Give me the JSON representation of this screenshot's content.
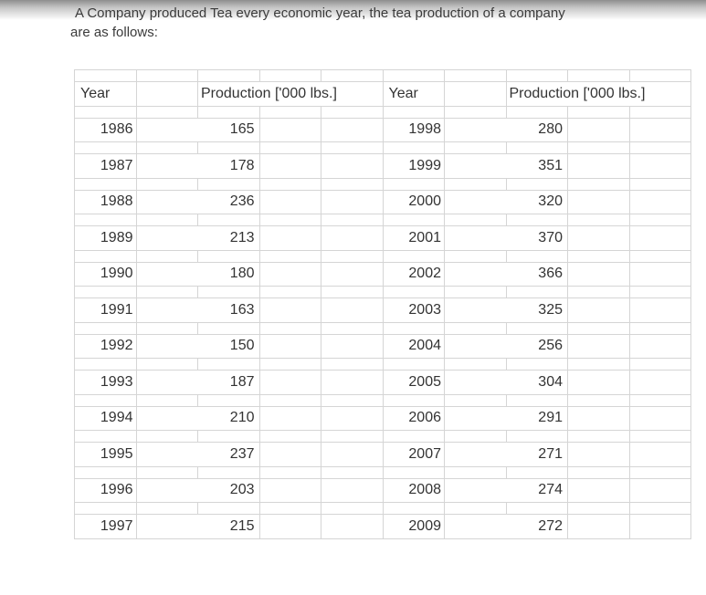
{
  "heading": {
    "line1": "A Company produced Tea every economic year, the tea production of a company",
    "line2": "are as follows:"
  },
  "table": {
    "headers": {
      "year": "Year",
      "production": "Production ['000 lbs.]"
    },
    "rows": [
      {
        "year_left": "1986",
        "prod_left": "165",
        "year_right": "1998",
        "prod_right": "280"
      },
      {
        "year_left": "1987",
        "prod_left": "178",
        "year_right": "1999",
        "prod_right": "351"
      },
      {
        "year_left": "1988",
        "prod_left": "236",
        "year_right": "2000",
        "prod_right": "320"
      },
      {
        "year_left": "1989",
        "prod_left": "213",
        "year_right": "2001",
        "prod_right": "370"
      },
      {
        "year_left": "1990",
        "prod_left": "180",
        "year_right": "2002",
        "prod_right": "366"
      },
      {
        "year_left": "1991",
        "prod_left": "163",
        "year_right": "2003",
        "prod_right": "325"
      },
      {
        "year_left": "1992",
        "prod_left": "150",
        "year_right": "2004",
        "prod_right": "256"
      },
      {
        "year_left": "1993",
        "prod_left": "187",
        "year_right": "2005",
        "prod_right": "304"
      },
      {
        "year_left": "1994",
        "prod_left": "210",
        "year_right": "2006",
        "prod_right": "291"
      },
      {
        "year_left": "1995",
        "prod_left": "237",
        "year_right": "2007",
        "prod_right": "271"
      },
      {
        "year_left": "1996",
        "prod_left": "203",
        "year_right": "2008",
        "prod_right": "274"
      },
      {
        "year_left": "1997",
        "prod_left": "215",
        "year_right": "2009",
        "prod_right": "272"
      }
    ]
  },
  "colors": {
    "grid_line": "#d5d5d5",
    "text": "#333333",
    "gradient_top": "#8e8e8e",
    "background": "#ffffff"
  }
}
